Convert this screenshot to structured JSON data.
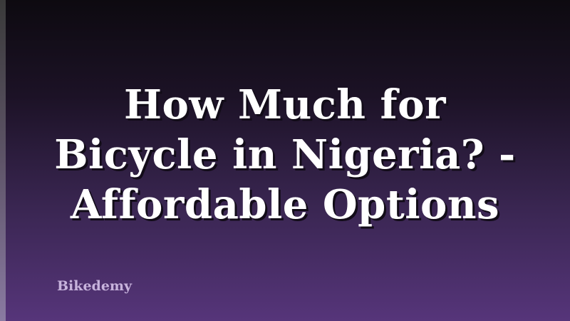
{
  "title": {
    "lines": [
      "How Much for",
      "Bicycle in Nigeria? -",
      "Affordable Options"
    ]
  },
  "brand": "Bikedemy",
  "colors": {
    "background_top": "#0d0a10",
    "background_bottom": "#56357a",
    "title": "#ffffff",
    "brand": "#c7b3dc"
  }
}
